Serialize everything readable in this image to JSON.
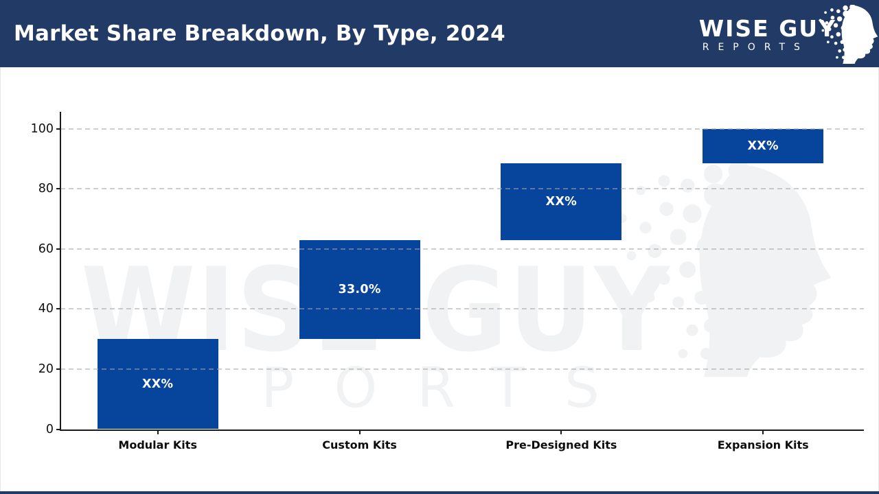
{
  "header": {
    "title": "Market Share Breakdown, By Type, 2024",
    "logo": {
      "line1": "WISE GUY",
      "line2": "REPORTS"
    }
  },
  "watermark": {
    "line1": "WISE GUY",
    "line2": "REPORTS"
  },
  "colors": {
    "header_navy": "#223a66",
    "bar_blue": "#07449b",
    "grid_gray": "#d9d9d9",
    "axis_black": "#1a1a1a",
    "watermark_gray": "#f1f2f4",
    "label_white": "#ffffff"
  },
  "chart_data": {
    "type": "bar",
    "subtype": "waterfall",
    "title": "Market Share Breakdown, By Type, 2024",
    "categories": [
      "Modular Kits",
      "Custom Kits",
      "Pre-Designed Kits",
      "Expansion Kits"
    ],
    "segments": [
      {
        "category": "Modular Kits",
        "start": 0,
        "end": 30,
        "value_label": "XX%"
      },
      {
        "category": "Custom Kits",
        "start": 30,
        "end": 63,
        "value_label": "33.0%"
      },
      {
        "category": "Pre-Designed Kits",
        "start": 63,
        "end": 88.5,
        "value_label": "XX%"
      },
      {
        "category": "Expansion Kits",
        "start": 88.5,
        "end": 100,
        "value_label": "XX%"
      }
    ],
    "xlabel": "",
    "ylabel": "",
    "ylim": [
      0,
      105.5
    ],
    "yticks": [
      0,
      20,
      40,
      60,
      80,
      100
    ],
    "grid": "horizontal-dashed",
    "legend": null
  }
}
